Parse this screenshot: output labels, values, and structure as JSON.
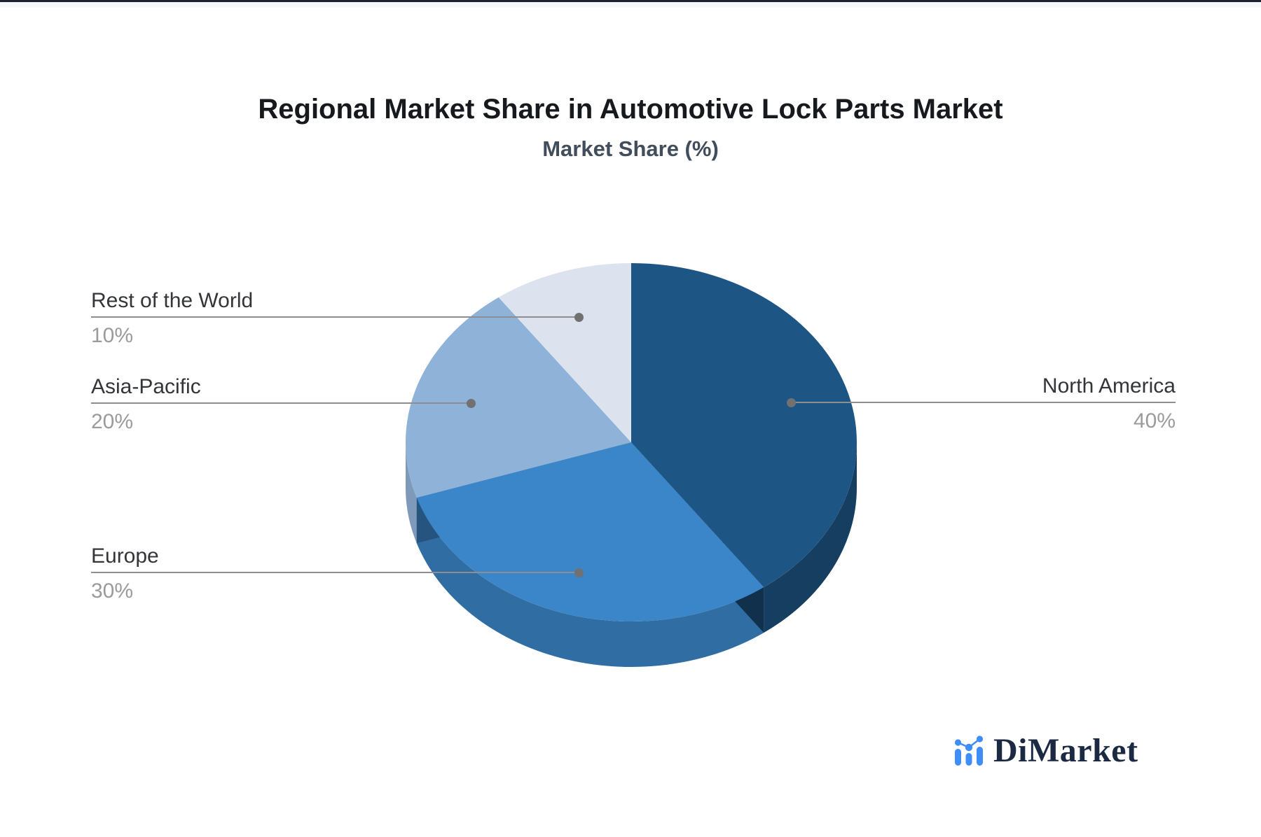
{
  "page": {
    "top_bar_color": "#1d222b",
    "background_color": "#ffffff"
  },
  "chart_data": {
    "type": "pie",
    "title": "Regional Market Share in Automotive Lock Parts Market",
    "subtitle": "Market Share (%)",
    "projection": "3d",
    "direction": "clockwise",
    "start_angle_deg": 0,
    "total_pct": 100,
    "legend_style": "leader-line labels with percent below",
    "leader_line_color": "#8e8e8e",
    "label_color": "#333539",
    "percent_color": "#9b9b9b",
    "slices": [
      {
        "label": "North America",
        "value": 40,
        "pct_text": "40%",
        "color": "#1d5585",
        "side_color": "#153e61"
      },
      {
        "label": "Europe",
        "value": 30,
        "pct_text": "30%",
        "color": "#3b86c8",
        "side_color": "#2f6da3"
      },
      {
        "label": "Asia-Pacific",
        "value": 20,
        "pct_text": "20%",
        "color": "#8fb2d8",
        "side_color": "#7e99ba"
      },
      {
        "label": "Rest of the World",
        "value": 10,
        "pct_text": "10%",
        "color": "#dde3ee",
        "side_color": "#ccd5e4"
      }
    ]
  },
  "brand": {
    "name": "DiMarket",
    "icon": "bar-line-chart-icon",
    "icon_color": "#3f8ef7",
    "text_color": "#1b2a42"
  }
}
